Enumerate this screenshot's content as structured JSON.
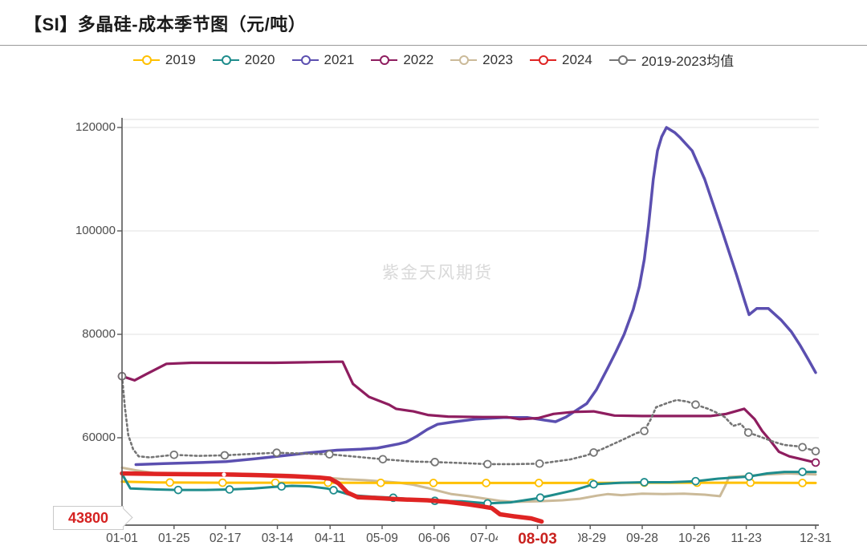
{
  "title": "【SI】多晶硅-成本季节图（元/吨）",
  "watermark": "紫金天风期货",
  "annotations": {
    "last_value_badge": "43800",
    "last_date_label": "08-03",
    "hidden_min_label": "43800"
  },
  "legend": {
    "items": [
      {
        "label": "2019",
        "color": "#FFC000"
      },
      {
        "label": "2020",
        "color": "#1E8C8C"
      },
      {
        "label": "2021",
        "color": "#5B4FB0"
      },
      {
        "label": "2022",
        "color": "#8E1D5F"
      },
      {
        "label": "2023",
        "color": "#CBBA99"
      },
      {
        "label": "2024",
        "color": "#DF2423"
      },
      {
        "label": "2019-2023均值",
        "color": "#757575"
      }
    ]
  },
  "chart_data": {
    "type": "line",
    "title": "【SI】多晶硅-成本季节图（元/吨）",
    "ylabel": "元/吨",
    "grid": true,
    "legend_position": "top",
    "y_axis": {
      "ticks": [
        120000,
        100000,
        80000,
        60000
      ],
      "min": 43800,
      "max": 121500
    },
    "x_axis": {
      "ticks": [
        {
          "label": "01-01",
          "f": 0.0
        },
        {
          "label": "01-25",
          "f": 0.075
        },
        {
          "label": "02-17",
          "f": 0.149
        },
        {
          "label": "03-14",
          "f": 0.224
        },
        {
          "label": "04-11",
          "f": 0.3
        },
        {
          "label": "05-09",
          "f": 0.375
        },
        {
          "label": "06-06",
          "f": 0.45
        },
        {
          "label": "07-04",
          "f": 0.525
        },
        {
          "label": "08-03",
          "f": 0.599,
          "highlight": true
        },
        {
          "label": "08-29",
          "f": 0.675
        },
        {
          "label": "09-28",
          "f": 0.75
        },
        {
          "label": "10-26",
          "f": 0.825
        },
        {
          "label": "11-23",
          "f": 0.9
        },
        {
          "label": "12-31",
          "f": 1.0
        }
      ]
    },
    "series": [
      {
        "name": "2023",
        "color": "#CBBA99",
        "width": 3,
        "marker_style": "none",
        "marker_fracs": [],
        "points": [
          [
            0,
            54200
          ],
          [
            0.02,
            53700
          ],
          [
            0.05,
            53100
          ],
          [
            0.073,
            52900
          ],
          [
            0.1,
            53000
          ],
          [
            0.13,
            52900
          ],
          [
            0.16,
            53050
          ],
          [
            0.2,
            52950
          ],
          [
            0.24,
            52800
          ],
          [
            0.27,
            52500
          ],
          [
            0.3,
            52200
          ],
          [
            0.32,
            52000
          ],
          [
            0.35,
            51800
          ],
          [
            0.38,
            51500
          ],
          [
            0.4,
            51300
          ],
          [
            0.42,
            50900
          ],
          [
            0.44,
            50300
          ],
          [
            0.46,
            49600
          ],
          [
            0.475,
            49100
          ],
          [
            0.5,
            48700
          ],
          [
            0.52,
            48300
          ],
          [
            0.545,
            47800
          ],
          [
            0.565,
            47600
          ],
          [
            0.6,
            47700
          ],
          [
            0.635,
            47900
          ],
          [
            0.66,
            48200
          ],
          [
            0.685,
            48800
          ],
          [
            0.7,
            49100
          ],
          [
            0.72,
            48900
          ],
          [
            0.75,
            49200
          ],
          [
            0.78,
            49100
          ],
          [
            0.81,
            49200
          ],
          [
            0.84,
            49000
          ],
          [
            0.862,
            48700
          ],
          [
            0.87,
            50800
          ],
          [
            0.875,
            52400
          ],
          [
            0.9,
            52600
          ],
          [
            0.93,
            52900
          ],
          [
            0.96,
            53100
          ],
          [
            1.0,
            52900
          ]
        ]
      },
      {
        "name": "2019",
        "color": "#FFC000",
        "width": 3,
        "marker_style": "open",
        "marker_fracs": [
          0.069,
          0.145,
          0.221,
          0.297,
          0.373,
          0.449,
          0.525,
          0.601,
          0.677,
          0.753,
          0.829,
          0.906,
          0.981
        ],
        "points": [
          [
            0,
            51500
          ],
          [
            0.05,
            51350
          ],
          [
            0.147,
            51300
          ],
          [
            0.3,
            51300
          ],
          [
            0.45,
            51250
          ],
          [
            0.6,
            51250
          ],
          [
            0.753,
            51300
          ],
          [
            0.906,
            51300
          ],
          [
            1.0,
            51250
          ]
        ]
      },
      {
        "name": "2020",
        "color": "#1E8C8C",
        "width": 3,
        "marker_style": "open",
        "marker_fracs": [
          0.081,
          0.155,
          0.23,
          0.305,
          0.391,
          0.451,
          0.527,
          0.603,
          0.68,
          0.753,
          0.827,
          0.904,
          0.981
        ],
        "points": [
          [
            0,
            53000
          ],
          [
            0.012,
            50200
          ],
          [
            0.05,
            50000
          ],
          [
            0.081,
            49900
          ],
          [
            0.12,
            49900
          ],
          [
            0.155,
            50000
          ],
          [
            0.19,
            50200
          ],
          [
            0.22,
            50500
          ],
          [
            0.245,
            50700
          ],
          [
            0.27,
            50600
          ],
          [
            0.295,
            50200
          ],
          [
            0.315,
            49500
          ],
          [
            0.33,
            48900
          ],
          [
            0.36,
            48600
          ],
          [
            0.391,
            48400
          ],
          [
            0.42,
            48100
          ],
          [
            0.451,
            47800
          ],
          [
            0.49,
            47700
          ],
          [
            0.527,
            47300
          ],
          [
            0.56,
            47500
          ],
          [
            0.58,
            47900
          ],
          [
            0.599,
            48300
          ],
          [
            0.62,
            48900
          ],
          [
            0.65,
            49800
          ],
          [
            0.68,
            51000
          ],
          [
            0.72,
            51300
          ],
          [
            0.753,
            51400
          ],
          [
            0.79,
            51400
          ],
          [
            0.827,
            51600
          ],
          [
            0.86,
            52100
          ],
          [
            0.904,
            52500
          ],
          [
            0.93,
            53100
          ],
          [
            0.955,
            53400
          ],
          [
            1.0,
            53400
          ]
        ]
      },
      {
        "name": "2021",
        "color": "#5B4FB0",
        "width": 3.5,
        "marker_style": "none",
        "marker_fracs": [],
        "points": [
          [
            0.02,
            54800
          ],
          [
            0.06,
            55000
          ],
          [
            0.11,
            55200
          ],
          [
            0.15,
            55400
          ],
          [
            0.19,
            55900
          ],
          [
            0.23,
            56500
          ],
          [
            0.27,
            57100
          ],
          [
            0.31,
            57600
          ],
          [
            0.345,
            57800
          ],
          [
            0.368,
            58000
          ],
          [
            0.399,
            58800
          ],
          [
            0.41,
            59200
          ],
          [
            0.425,
            60300
          ],
          [
            0.44,
            61600
          ],
          [
            0.455,
            62600
          ],
          [
            0.48,
            63100
          ],
          [
            0.51,
            63600
          ],
          [
            0.55,
            63900
          ],
          [
            0.585,
            63900
          ],
          [
            0.61,
            63400
          ],
          [
            0.625,
            63100
          ],
          [
            0.64,
            64000
          ],
          [
            0.655,
            65300
          ],
          [
            0.67,
            66600
          ],
          [
            0.684,
            69300
          ],
          [
            0.7,
            73400
          ],
          [
            0.712,
            76600
          ],
          [
            0.724,
            80000
          ],
          [
            0.737,
            84800
          ],
          [
            0.746,
            89300
          ],
          [
            0.753,
            94500
          ],
          [
            0.759,
            101000
          ],
          [
            0.766,
            110000
          ],
          [
            0.772,
            115500
          ],
          [
            0.778,
            118200
          ],
          [
            0.785,
            120000
          ],
          [
            0.797,
            119000
          ],
          [
            0.805,
            118000
          ],
          [
            0.822,
            115500
          ],
          [
            0.84,
            110000
          ],
          [
            0.866,
            99700
          ],
          [
            0.886,
            91500
          ],
          [
            0.898,
            86300
          ],
          [
            0.904,
            83800
          ],
          [
            0.915,
            85000
          ],
          [
            0.932,
            85000
          ],
          [
            0.95,
            82800
          ],
          [
            0.965,
            80500
          ],
          [
            0.978,
            77800
          ],
          [
            0.99,
            75000
          ],
          [
            1.0,
            72600
          ]
        ]
      },
      {
        "name": "2022",
        "color": "#8E1D5F",
        "width": 3.2,
        "marker_style": "open",
        "marker_fracs": [
          0,
          1.0
        ],
        "points": [
          [
            0,
            71900
          ],
          [
            0.018,
            71100
          ],
          [
            0.035,
            72300
          ],
          [
            0.064,
            74300
          ],
          [
            0.1,
            74500
          ],
          [
            0.16,
            74500
          ],
          [
            0.22,
            74500
          ],
          [
            0.27,
            74600
          ],
          [
            0.31,
            74700
          ],
          [
            0.318,
            74700
          ],
          [
            0.333,
            70400
          ],
          [
            0.356,
            67900
          ],
          [
            0.385,
            66400
          ],
          [
            0.395,
            65600
          ],
          [
            0.42,
            65100
          ],
          [
            0.441,
            64400
          ],
          [
            0.47,
            64100
          ],
          [
            0.52,
            64000
          ],
          [
            0.555,
            64000
          ],
          [
            0.573,
            63600
          ],
          [
            0.6,
            63800
          ],
          [
            0.622,
            64600
          ],
          [
            0.65,
            65000
          ],
          [
            0.68,
            65100
          ],
          [
            0.71,
            64300
          ],
          [
            0.75,
            64200
          ],
          [
            0.8,
            64200
          ],
          [
            0.848,
            64200
          ],
          [
            0.871,
            64600
          ],
          [
            0.897,
            65600
          ],
          [
            0.912,
            63600
          ],
          [
            0.923,
            61300
          ],
          [
            0.935,
            59400
          ],
          [
            0.947,
            57300
          ],
          [
            0.962,
            56400
          ],
          [
            0.978,
            55900
          ],
          [
            1.0,
            55200
          ]
        ]
      },
      {
        "name": "2019-2023均值",
        "color": "#757575",
        "width": 2.6,
        "dash": "2.5 3.5",
        "marker_style": "open",
        "marker_fracs": [
          0,
          0.075,
          0.148,
          0.223,
          0.299,
          0.376,
          0.451,
          0.527,
          0.602,
          0.68,
          0.753,
          0.827,
          0.903,
          0.981,
          1.0
        ],
        "points": [
          [
            0,
            71900
          ],
          [
            0.004,
            66000
          ],
          [
            0.009,
            60500
          ],
          [
            0.016,
            57800
          ],
          [
            0.024,
            56400
          ],
          [
            0.04,
            56200
          ],
          [
            0.075,
            56700
          ],
          [
            0.11,
            56500
          ],
          [
            0.148,
            56600
          ],
          [
            0.19,
            56900
          ],
          [
            0.223,
            57100
          ],
          [
            0.27,
            56900
          ],
          [
            0.299,
            56800
          ],
          [
            0.34,
            56300
          ],
          [
            0.38,
            55800
          ],
          [
            0.42,
            55400
          ],
          [
            0.451,
            55300
          ],
          [
            0.49,
            55100
          ],
          [
            0.527,
            54900
          ],
          [
            0.565,
            54900
          ],
          [
            0.602,
            55000
          ],
          [
            0.646,
            55800
          ],
          [
            0.67,
            56600
          ],
          [
            0.692,
            57800
          ],
          [
            0.72,
            59500
          ],
          [
            0.742,
            60900
          ],
          [
            0.753,
            61300
          ],
          [
            0.762,
            63500
          ],
          [
            0.77,
            65900
          ],
          [
            0.788,
            66800
          ],
          [
            0.8,
            67300
          ],
          [
            0.815,
            67000
          ],
          [
            0.827,
            66400
          ],
          [
            0.845,
            65600
          ],
          [
            0.858,
            64800
          ],
          [
            0.869,
            64000
          ],
          [
            0.881,
            62300
          ],
          [
            0.892,
            62700
          ],
          [
            0.903,
            61000
          ],
          [
            0.92,
            60200
          ],
          [
            0.94,
            59200
          ],
          [
            0.955,
            58600
          ],
          [
            0.978,
            58300
          ],
          [
            1.0,
            57400
          ]
        ]
      },
      {
        "name": "2024",
        "color": "#DF2423",
        "width": 5.5,
        "marker_style": "dot",
        "marker_fracs": [
          0.147
        ],
        "points": [
          [
            0,
            53100
          ],
          [
            0.05,
            53000
          ],
          [
            0.1,
            52950
          ],
          [
            0.147,
            52900
          ],
          [
            0.2,
            52750
          ],
          [
            0.25,
            52550
          ],
          [
            0.285,
            52300
          ],
          [
            0.3,
            52100
          ],
          [
            0.312,
            51200
          ],
          [
            0.325,
            49400
          ],
          [
            0.34,
            48500
          ],
          [
            0.365,
            48350
          ],
          [
            0.4,
            48100
          ],
          [
            0.44,
            47900
          ],
          [
            0.47,
            47600
          ],
          [
            0.5,
            47100
          ],
          [
            0.52,
            46700
          ],
          [
            0.533,
            46400
          ],
          [
            0.545,
            45200
          ],
          [
            0.565,
            44800
          ],
          [
            0.59,
            44400
          ],
          [
            0.605,
            43800
          ]
        ]
      }
    ]
  }
}
